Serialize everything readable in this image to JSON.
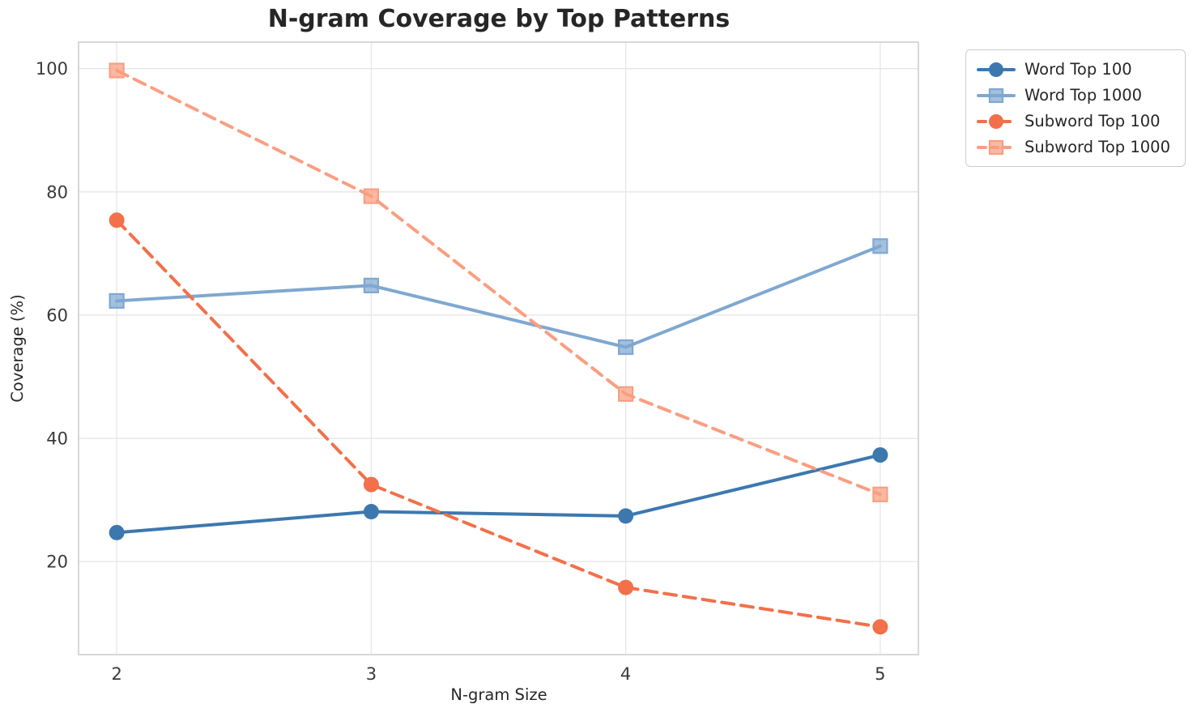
{
  "chart_data": {
    "type": "line",
    "title": "N-gram Coverage by Top Patterns",
    "xlabel": "N-gram Size",
    "ylabel": "Coverage (%)",
    "x": [
      2,
      3,
      4,
      5
    ],
    "x_tick_labels": [
      "2",
      "3",
      "4",
      "5"
    ],
    "y_tick_values": [
      20,
      40,
      60,
      80,
      100
    ],
    "y_tick_labels": [
      "20",
      "40",
      "60",
      "80",
      "100"
    ],
    "xlim": [
      1.85,
      5.15
    ],
    "ylim": [
      4.9,
      104.3
    ],
    "grid": true,
    "legend_position": "outside-top-right",
    "series": [
      {
        "name": "Word Top 100",
        "values": [
          24.7,
          28.1,
          27.4,
          37.3
        ],
        "color": "#3c78ae",
        "line_style": "solid",
        "marker": "circle"
      },
      {
        "name": "Word Top 1000",
        "values": [
          62.3,
          64.8,
          54.8,
          71.2
        ],
        "color": "#7fa8d0",
        "line_style": "solid",
        "marker": "square"
      },
      {
        "name": "Subword Top 100",
        "values": [
          75.4,
          32.5,
          15.8,
          9.4
        ],
        "color": "#f2704a",
        "line_style": "dashed",
        "marker": "circle"
      },
      {
        "name": "Subword Top 1000",
        "values": [
          99.7,
          79.3,
          47.2,
          30.9
        ],
        "color": "#fa9e80",
        "line_style": "dashed",
        "marker": "square"
      }
    ]
  },
  "colors": {
    "background": "#ffffff",
    "grid": "#e6e6e6",
    "spine": "#cfcfcf",
    "title_text": "#262626",
    "tick_text": "#3a3a3a",
    "label_text": "#262626"
  }
}
